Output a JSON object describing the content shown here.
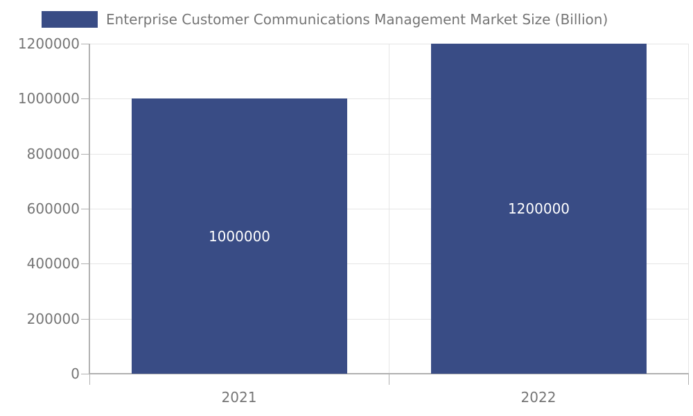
{
  "legend": {
    "label": "Enterprise Customer Communications Management Market Size (Billion)",
    "swatch_color": "#394c85"
  },
  "chart_data": {
    "type": "bar",
    "title": "Enterprise Customer Communications Management Market Size (Billion)",
    "categories": [
      "2021",
      "2022"
    ],
    "values": [
      1000000,
      1200000
    ],
    "data_labels": [
      "1000000",
      "1200000"
    ],
    "series": [
      {
        "name": "Enterprise Customer Communications Management Market Size (Billion)",
        "values": [
          1000000,
          1200000
        ]
      }
    ],
    "xlabel": "",
    "ylabel": "",
    "ylim": [
      0,
      1200000
    ],
    "ytick_interval": 200000,
    "ytick_labels": [
      "0",
      "200000",
      "400000",
      "600000",
      "800000",
      "1000000",
      "1200000"
    ],
    "grid": true,
    "legend_position": "top-left",
    "bar_color": "#394c85",
    "value_label_color": "#ffffff"
  },
  "colors": {
    "bar": "#394c85",
    "axis": "#b0b0b0",
    "grid": "#e5e5e5",
    "text": "#757575",
    "background": "#ffffff"
  }
}
